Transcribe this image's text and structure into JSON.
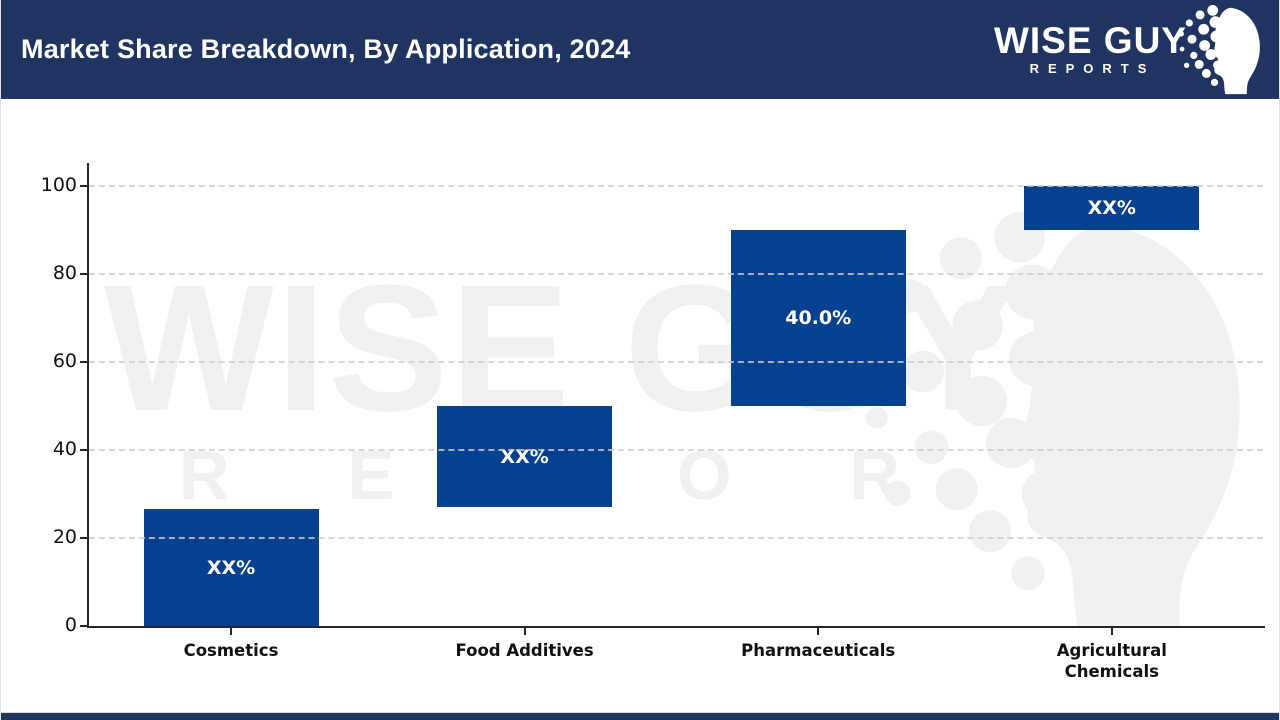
{
  "header": {
    "title": "Market Share Breakdown, By Application, 2024",
    "logo": {
      "line1": "WISE GUY",
      "line2": "REPORTS"
    }
  },
  "watermark": {
    "line1": "WISE GUY",
    "line2": "REPORTS"
  },
  "chart_data": {
    "type": "bar",
    "subtype": "waterfall",
    "title": "Market Share Breakdown, By Application, 2024",
    "categories": [
      "Cosmetics",
      "Food Additives",
      "Pharmaceuticals",
      "Agricultural Chemicals"
    ],
    "segments": [
      {
        "category": "Cosmetics",
        "start": 0,
        "end": 26.5,
        "label": "XX%"
      },
      {
        "category": "Food Additives",
        "start": 27,
        "end": 50,
        "label": "XX%"
      },
      {
        "category": "Pharmaceuticals",
        "start": 50,
        "end": 90,
        "label": "40.0%"
      },
      {
        "category": "Agricultural Chemicals",
        "start": 90,
        "end": 100,
        "label": "XX%"
      }
    ],
    "xlabel": "",
    "ylabel": "",
    "ylim": [
      0,
      100
    ],
    "yticks": [
      0,
      20,
      40,
      60,
      80,
      100
    ],
    "grid": "horizontal-dashed",
    "legend": "none",
    "bar_color": "#05418e",
    "bar_label_color": "#ffffff"
  },
  "colors": {
    "header_bg": "#1f3461",
    "footer_bg": "#1f3461",
    "bar": "#05418e",
    "watermark": "#f0f1f3",
    "gridline": "#d5d5d5",
    "axis": "#262626"
  }
}
